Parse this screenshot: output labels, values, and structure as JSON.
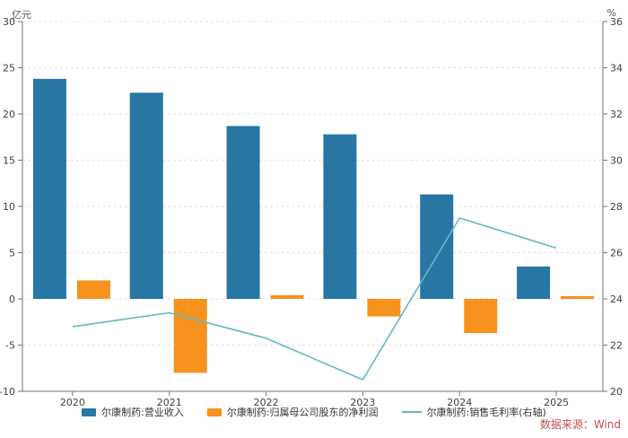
{
  "header": {
    "left_unit": "亿元",
    "right_unit": "%"
  },
  "footer": {
    "source": "数据来源：Wind"
  },
  "colors": {
    "revenue": "#2776A4",
    "profit": "#F6921E",
    "margin": "#63B8C1",
    "grid": "#E2E2E2",
    "axis": "#737373",
    "tick_text": "#404040",
    "source_text": "#C0504D"
  },
  "chart_data": {
    "type": "combo-bar-line",
    "categories": [
      "2020",
      "2021",
      "2022",
      "2023",
      "2024",
      "2025"
    ],
    "series": [
      {
        "key": "revenue",
        "name": "尔康制药:营业收入",
        "type": "bar",
        "axis": "left",
        "values": [
          23.8,
          22.3,
          18.7,
          17.8,
          11.3,
          3.5
        ]
      },
      {
        "key": "profit",
        "name": "尔康制药:归属母公司股东的净利润",
        "type": "bar",
        "axis": "left",
        "values": [
          2.0,
          -8.0,
          0.4,
          -1.9,
          -3.7,
          0.3
        ]
      },
      {
        "key": "margin",
        "name": "尔康制药:销售毛利率(右轴)",
        "type": "line",
        "axis": "right",
        "values": [
          22.8,
          23.4,
          22.3,
          20.5,
          27.5,
          26.2
        ]
      }
    ],
    "left_axis": {
      "label": "亿元",
      "min": -10,
      "max": 30,
      "step": 5,
      "ticks": [
        30,
        25,
        20,
        15,
        10,
        5,
        0,
        -5,
        -10
      ]
    },
    "right_axis": {
      "label": "%",
      "min": 20,
      "max": 36,
      "step": 2,
      "ticks": [
        36,
        34,
        32,
        30,
        28,
        26,
        24,
        22,
        20
      ]
    },
    "grid": "horizontal-dashed",
    "legend_position": "bottom-center",
    "title": ""
  }
}
